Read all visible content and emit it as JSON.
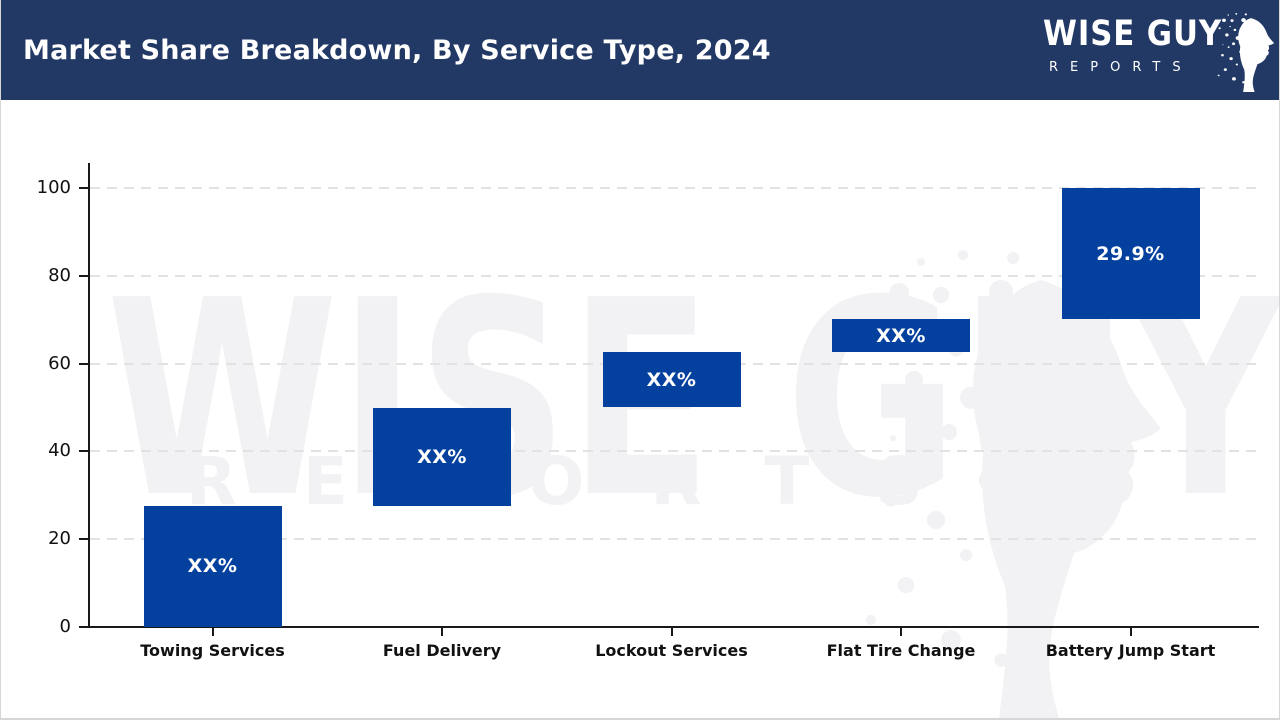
{
  "header": {
    "title": "Market Share Breakdown, By Service Type, 2024",
    "logo": {
      "line1": "WISE GUY",
      "line2": "REPORTS"
    }
  },
  "watermark": {
    "line1": "WISE GUY",
    "line2": "REPORTS"
  },
  "chart_data": {
    "type": "bar",
    "subtype": "floating-waterfall",
    "title": "Market Share Breakdown, By Service Type, 2024",
    "categories": [
      "Towing Services",
      "Fuel Delivery",
      "Lockout Services",
      "Flat Tire Change",
      "Battery Jump Start"
    ],
    "segments": [
      {
        "category": "Towing Services",
        "start": 0,
        "end": 27.6,
        "label": "XX%"
      },
      {
        "category": "Fuel Delivery",
        "start": 27.6,
        "end": 50.0,
        "label": "XX%"
      },
      {
        "category": "Lockout Services",
        "start": 50.0,
        "end": 62.6,
        "label": "XX%"
      },
      {
        "category": "Flat Tire Change",
        "start": 62.6,
        "end": 70.1,
        "label": "XX%"
      },
      {
        "category": "Battery Jump Start",
        "start": 70.1,
        "end": 100.0,
        "label": "29.9%",
        "value": 29.9
      }
    ],
    "y_ticks": [
      0,
      20,
      40,
      60,
      80,
      100
    ],
    "ylim": [
      0,
      100
    ],
    "xlabel": "",
    "ylabel": "",
    "grid": "horizontal-dashed",
    "legend": "none",
    "colors": {
      "bar": "#04419e",
      "bar_label": "#ffffff",
      "header_bg": "#223865",
      "axis": "#1a1a1a",
      "grid": "#e2e2e2",
      "watermark": "#f2f2f4"
    }
  }
}
